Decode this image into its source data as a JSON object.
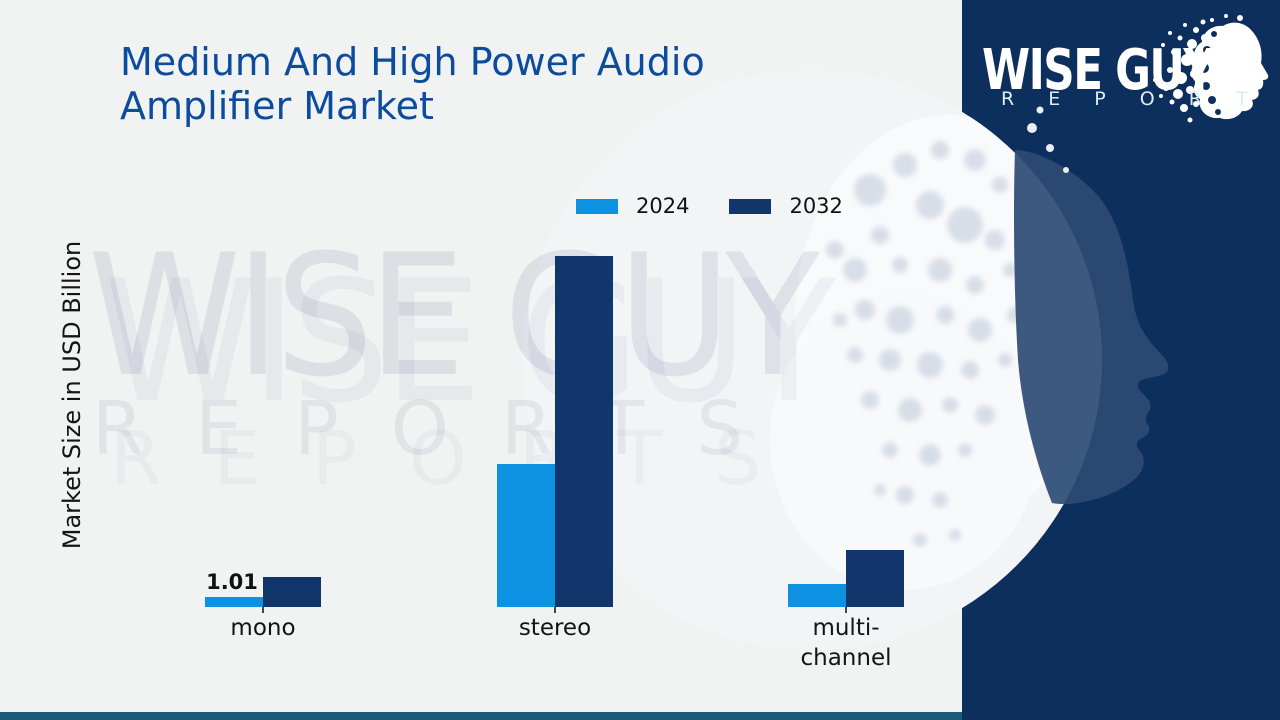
{
  "page": {
    "background_color": "#f1f2f2"
  },
  "header": {
    "title_line1": "Medium And High Power Audio",
    "title_line2": "Amplifier Market",
    "title_color": "#0d4c9d"
  },
  "watermark": {
    "line1": "WISE GUY",
    "line2": "REPORTS"
  },
  "logo": {
    "brand": "WISE GUY",
    "sub_brand": "R E P O R T S",
    "panel_color": "#0d2f5e"
  },
  "chart_data": {
    "type": "bar",
    "title": "Medium And High Power Audio Amplifier Market",
    "xlabel": "",
    "ylabel": "Market Size in USD Billion",
    "categories": [
      "mono",
      "stereo",
      "multi-channel"
    ],
    "series": [
      {
        "name": "2024",
        "color": "#0d91e1",
        "values": [
          1.01,
          14.4,
          2.3
        ]
      },
      {
        "name": "2032",
        "color": "#10366b",
        "values": [
          3.0,
          35.5,
          5.8
        ]
      }
    ],
    "value_labels": [
      {
        "category": "mono",
        "series": "2024",
        "text": "1.01"
      }
    ],
    "ylim": [
      0,
      40
    ],
    "grid": false,
    "legend_position": "top-center",
    "axis_visible": false
  },
  "footer": {
    "bar_color": "#1b5a78"
  }
}
